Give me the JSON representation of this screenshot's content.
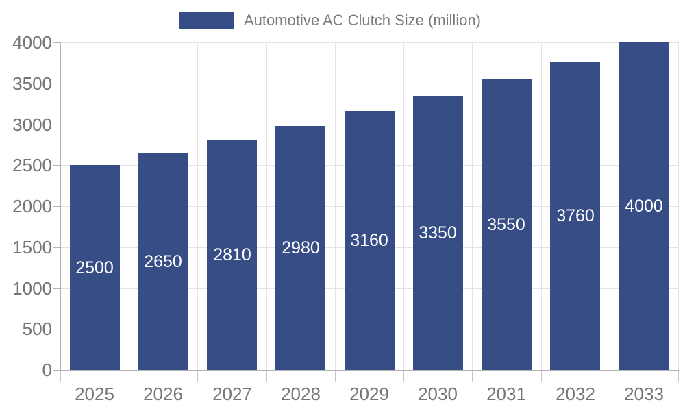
{
  "legend": {
    "items": [
      {
        "label": "Automotive AC Clutch Size (million)",
        "color": "#374D86"
      }
    ],
    "position": "top"
  },
  "chart_data": {
    "type": "bar",
    "title": "Automotive AC Clutch Size (million)",
    "series_name": "Automotive AC Clutch Size (million)",
    "categories": [
      "2025",
      "2026",
      "2027",
      "2028",
      "2029",
      "2030",
      "2031",
      "2032",
      "2033"
    ],
    "values": [
      2500,
      2650,
      2810,
      2980,
      3160,
      3350,
      3550,
      3760,
      4000
    ],
    "bar_labels": [
      2500,
      2650,
      2810,
      2980,
      3160,
      3350,
      3550,
      3760,
      4000
    ],
    "xlabel": "",
    "ylabel": "",
    "ylim": [
      0,
      4000
    ],
    "ytick_step": 500,
    "yticks": [
      0,
      500,
      1000,
      1500,
      2000,
      2500,
      3000,
      3500,
      4000
    ],
    "grid": true,
    "legend_position": "top"
  },
  "style": {
    "bar_color": "#374D86",
    "bar_label_color": "#FFFFFF",
    "grid_color": "#E3E3E3",
    "axis_color": "#B3B3B3",
    "tick_color": "#C6C6C6",
    "tick_label_color": "#757575",
    "legend_text_color": "#7A7A7A",
    "background": "#FFFFFF"
  }
}
